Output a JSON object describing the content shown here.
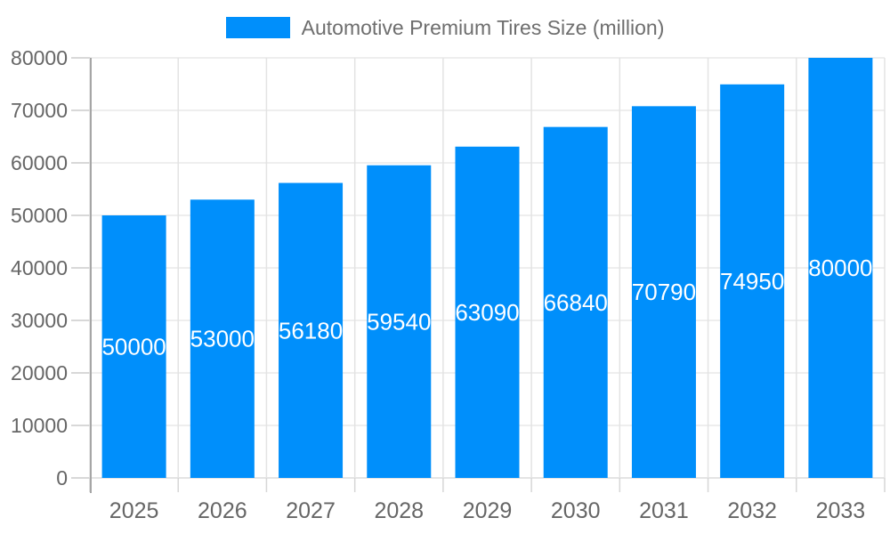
{
  "chart_data": {
    "type": "bar",
    "title": "Automotive Premium Tires Size (million)",
    "legend": [
      {
        "label": "Automotive Premium Tires Size (million)",
        "color": "#008FFB"
      }
    ],
    "legend_position": "top",
    "categories": [
      "2025",
      "2026",
      "2027",
      "2028",
      "2029",
      "2030",
      "2031",
      "2032",
      "2033"
    ],
    "series": [
      {
        "name": "Automotive Premium Tires Size (million)",
        "values": [
          50000,
          53000,
          56180,
          59540,
          63090,
          66840,
          70790,
          74950,
          80000
        ]
      }
    ],
    "data_labels_shown": true,
    "xlabel": "",
    "ylabel": "",
    "ylim": [
      0,
      80000
    ],
    "ytick_interval": 10000,
    "grid": true,
    "colors": {
      "bar": "#008FFB",
      "axis_text": "#666666",
      "legend_text": "#6e6e6e",
      "grid_h": "#e8e8e8",
      "grid_v": "#e3e3e3",
      "tick": "#cccccc",
      "axis_line": "#a6a6a6",
      "data_label": "#ffffff",
      "background": "#ffffff"
    }
  }
}
